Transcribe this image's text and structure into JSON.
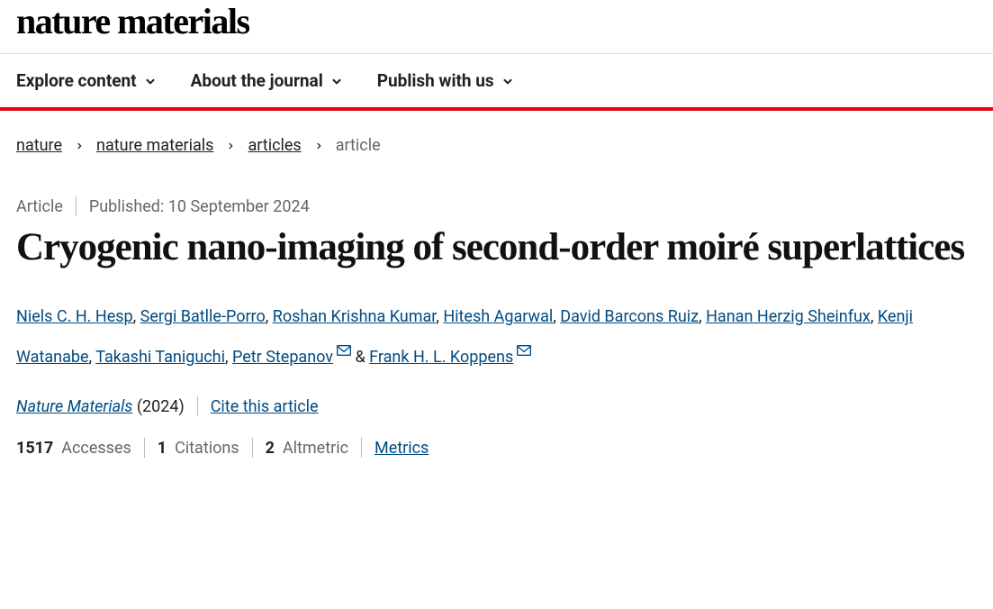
{
  "brand": "nature materials",
  "nav": [
    {
      "label": "Explore content"
    },
    {
      "label": "About the journal"
    },
    {
      "label": "Publish with us"
    }
  ],
  "breadcrumb": {
    "items": [
      "nature",
      "nature materials",
      "articles"
    ],
    "current": "article"
  },
  "meta": {
    "type": "Article",
    "published_label": "Published:",
    "published_date": "10 September 2024"
  },
  "title": "Cryogenic nano-imaging of second-order moiré superlattices",
  "authors": [
    {
      "name": "Niels C. H. Hesp",
      "mail": false
    },
    {
      "name": "Sergi Batlle-Porro",
      "mail": false
    },
    {
      "name": "Roshan Krishna Kumar",
      "mail": false
    },
    {
      "name": "Hitesh Agarwal",
      "mail": false
    },
    {
      "name": "David Barcons Ruiz",
      "mail": false
    },
    {
      "name": "Hanan Herzig Sheinfux",
      "mail": false
    },
    {
      "name": "Kenji Watanabe",
      "mail": false
    },
    {
      "name": "Takashi Taniguchi",
      "mail": false
    },
    {
      "name": "Petr Stepanov",
      "mail": true
    },
    {
      "name": "Frank H. L. Koppens",
      "mail": true
    }
  ],
  "amp": "&",
  "journal": {
    "name": "Nature Materials",
    "year": "(2024)",
    "cite": "Cite this article"
  },
  "metrics": {
    "accesses": {
      "value": "1517",
      "label": "Accesses"
    },
    "citations": {
      "value": "1",
      "label": "Citations"
    },
    "altmetric": {
      "value": "2",
      "label": "Altmetric"
    },
    "link": "Metrics"
  },
  "colors": {
    "accent": "#e30613",
    "link": "#004b83"
  }
}
